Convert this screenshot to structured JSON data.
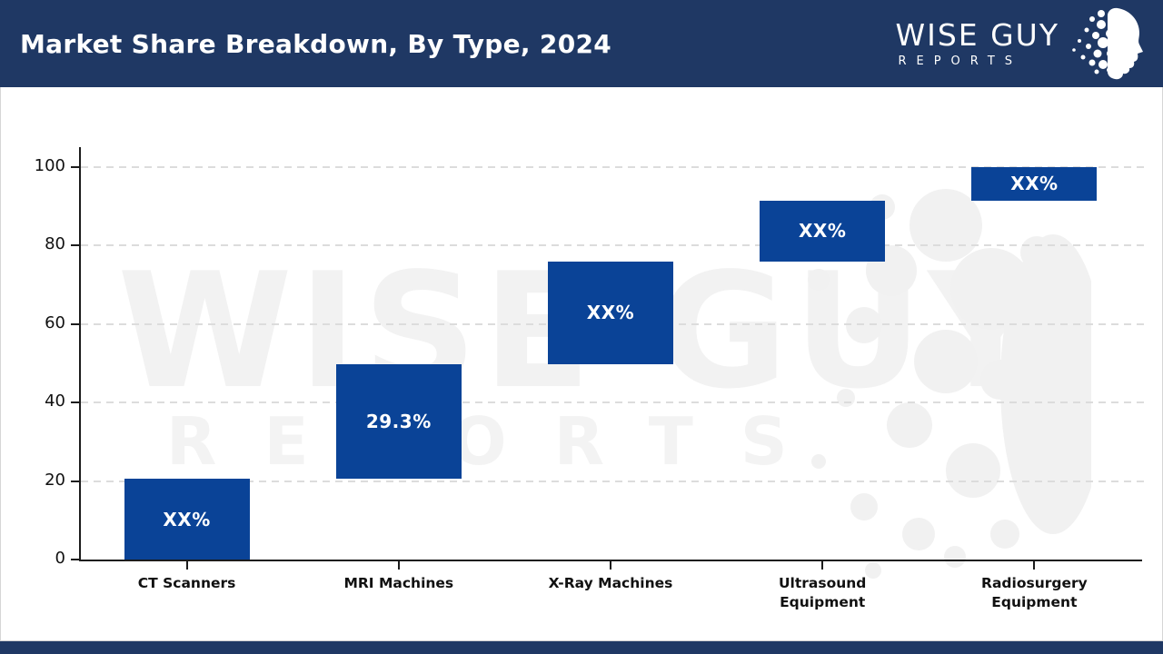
{
  "header": {
    "title": "Market Share Breakdown, By Type, 2024",
    "logo": {
      "name": "WISE GUY REPORTS",
      "line1": "WISE GUY",
      "line2": "REPORTS"
    }
  },
  "watermark": {
    "line1": "WISE GUY",
    "line2": "REPORTS"
  },
  "colors": {
    "header_bg": "#1f3864",
    "footer_bg": "#1f3864",
    "bar": "#0a4397",
    "bar_label": "#ffffff",
    "grid": "#dcdcdc",
    "axis": "#1c1c1c",
    "tick_label": "#111111",
    "watermark": "#f2f2f2"
  },
  "chart_data": {
    "type": "bar",
    "variant": "floating-waterfall",
    "title": "Market Share Breakdown, By Type, 2024",
    "categories": [
      "CT Scanners",
      "MRI Machines",
      "X-Ray Machines",
      "Ultrasound Equipment",
      "Radiosurgery Equipment"
    ],
    "category_lines": [
      [
        "CT Scanners"
      ],
      [
        "MRI Machines"
      ],
      [
        "X-Ray Machines"
      ],
      [
        "Ultrasound",
        "Equipment"
      ],
      [
        "Radiosurgery",
        "Equipment"
      ]
    ],
    "segments": [
      {
        "category": "CT Scanners",
        "start": 0,
        "end": 20.5,
        "label": "XX%"
      },
      {
        "category": "MRI Machines",
        "start": 20.5,
        "end": 49.8,
        "value": 29.3,
        "label": "29.3%"
      },
      {
        "category": "X-Ray Machines",
        "start": 49.8,
        "end": 75.9,
        "label": "XX%"
      },
      {
        "category": "Ultrasound Equipment",
        "start": 75.9,
        "end": 91.5,
        "label": "XX%"
      },
      {
        "category": "Radiosurgery Equipment",
        "start": 91.5,
        "end": 100,
        "label": "XX%"
      }
    ],
    "xlabel": "",
    "ylabel": "",
    "yticks": [
      0,
      20,
      40,
      60,
      80,
      100
    ],
    "ylim": [
      0,
      105
    ],
    "grid": "horizontal-dashed",
    "legend_position": "none",
    "bar_color": "#0a4397",
    "bar_label_color": "#ffffff"
  }
}
